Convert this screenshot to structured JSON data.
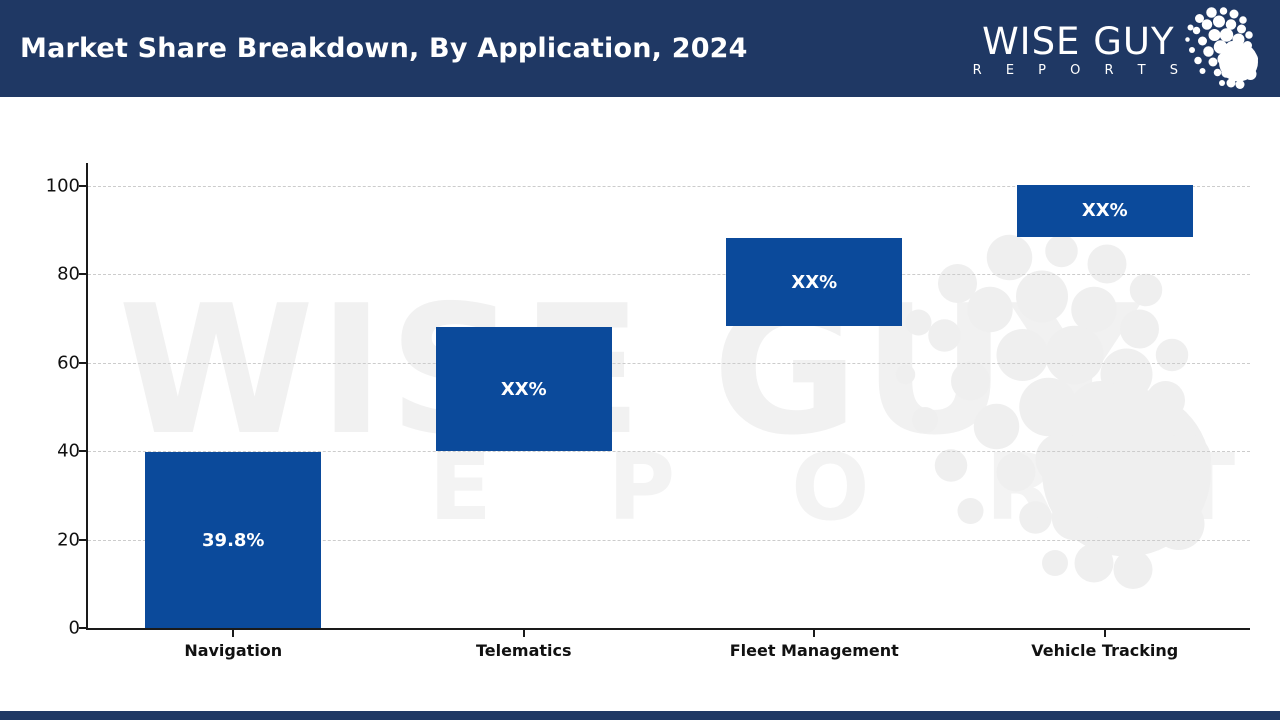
{
  "header": {
    "title": "Market Share Breakdown, By Application, 2024",
    "bg_color": "#1f3864",
    "logo": {
      "line1": "WISE GUY",
      "line2": "R E P O R T S"
    }
  },
  "watermark": {
    "line1": "WISE GUY",
    "line2": "R E P O R T S"
  },
  "chart_data": {
    "type": "bar",
    "subtype": "floating-waterfall",
    "title": "Market Share Breakdown, By Application, 2024",
    "categories": [
      "Navigation",
      "Telematics",
      "Fleet Management",
      "Vehicle Tracking"
    ],
    "bars": [
      {
        "category": "Navigation",
        "start": 0,
        "end": 39.8,
        "label": "39.8%"
      },
      {
        "category": "Telematics",
        "start": 40.0,
        "end": 68.1,
        "label": "XX%"
      },
      {
        "category": "Fleet Management",
        "start": 68.3,
        "end": 88.2,
        "label": "XX%"
      },
      {
        "category": "Vehicle Tracking",
        "start": 88.5,
        "end": 100.3,
        "label": "XX%"
      }
    ],
    "bar_color": "#0b4a9b",
    "bar_label_color": "#ffffff",
    "yticks": [
      0,
      20,
      40,
      60,
      80,
      100
    ],
    "ylim": [
      0,
      105.2
    ],
    "grid": "horizontal dashed",
    "gridline_color": "#cccccc",
    "legend": "none",
    "xlabel": "",
    "ylabel": ""
  }
}
